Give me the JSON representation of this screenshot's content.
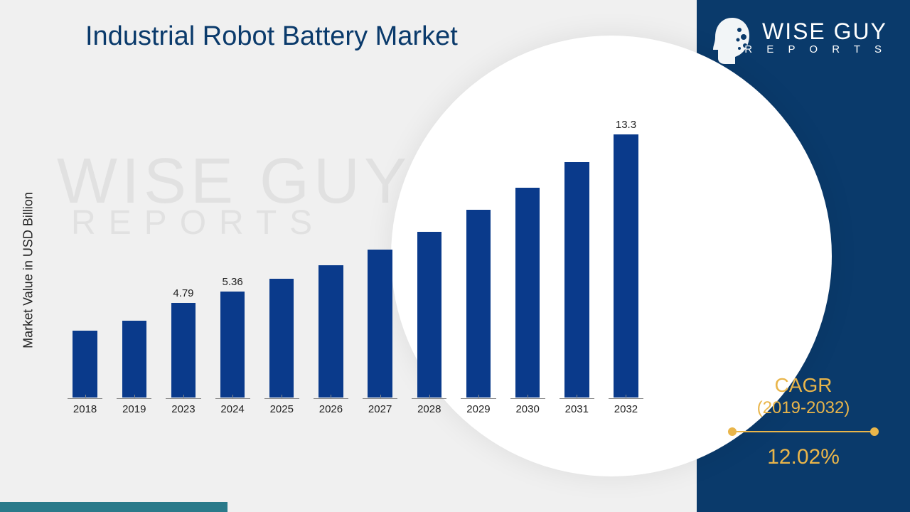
{
  "title": "Industrial Robot Battery Market",
  "logo": {
    "line1": "WISE GUY",
    "line2": "R E P O R T S"
  },
  "watermark": {
    "line1": "WISE GUY",
    "line2": "REPORTS"
  },
  "cagr": {
    "label": "CAGR",
    "years": "(2019-2032)",
    "value": "12.02%",
    "accent_color": "#e9b54a"
  },
  "chart": {
    "type": "bar",
    "ylabel": "Market Value in USD Billion",
    "ylim": [
      0,
      14
    ],
    "bar_color": "#0a3a8b",
    "background_color": "#f0f0f0",
    "label_fontsize": 15,
    "bar_width": 0.7,
    "categories": [
      "2018",
      "2019",
      "2023",
      "2024",
      "2025",
      "2026",
      "2027",
      "2028",
      "2029",
      "2030",
      "2031",
      "2032"
    ],
    "values": [
      3.4,
      3.9,
      4.79,
      5.36,
      6.0,
      6.7,
      7.5,
      8.4,
      9.5,
      10.6,
      11.9,
      13.3
    ],
    "shown_value_labels": {
      "2023": "4.79",
      "2024": "5.36",
      "2032": "13.3"
    }
  },
  "colors": {
    "panel": "#0a3a6b",
    "circle": "#ffffff",
    "title": "#0a3a6b",
    "bottom_accent": "#2a7a8a"
  }
}
